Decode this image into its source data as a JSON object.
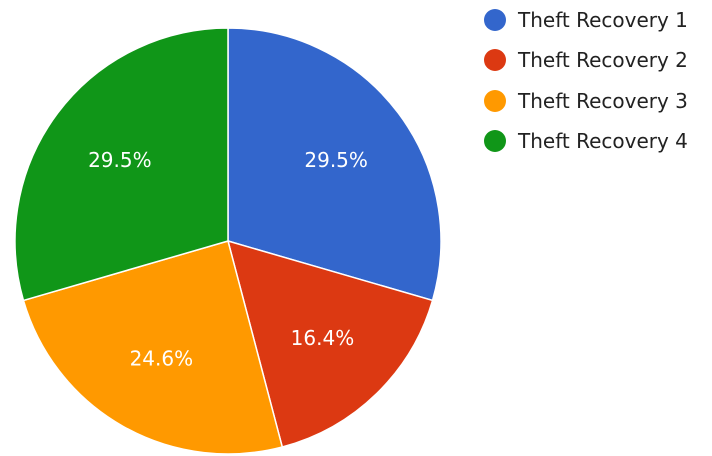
{
  "chart_data": {
    "type": "pie",
    "title": "",
    "categories": [
      "Theft Recovery 1",
      "Theft Recovery 2",
      "Theft Recovery 3",
      "Theft Recovery 4"
    ],
    "values": [
      29.5,
      16.4,
      24.6,
      29.5
    ],
    "labels": [
      "29.5%",
      "16.4%",
      "24.6%",
      "29.5%"
    ],
    "colors": [
      "#3366cc",
      "#dc3912",
      "#ff9900",
      "#109618"
    ],
    "start_angle": "12 o'clock",
    "direction": "clockwise",
    "legend": {
      "position": "top-right",
      "entries": [
        "Theft Recovery 1",
        "Theft Recovery 2",
        "Theft Recovery 3",
        "Theft Recovery 4"
      ]
    }
  }
}
